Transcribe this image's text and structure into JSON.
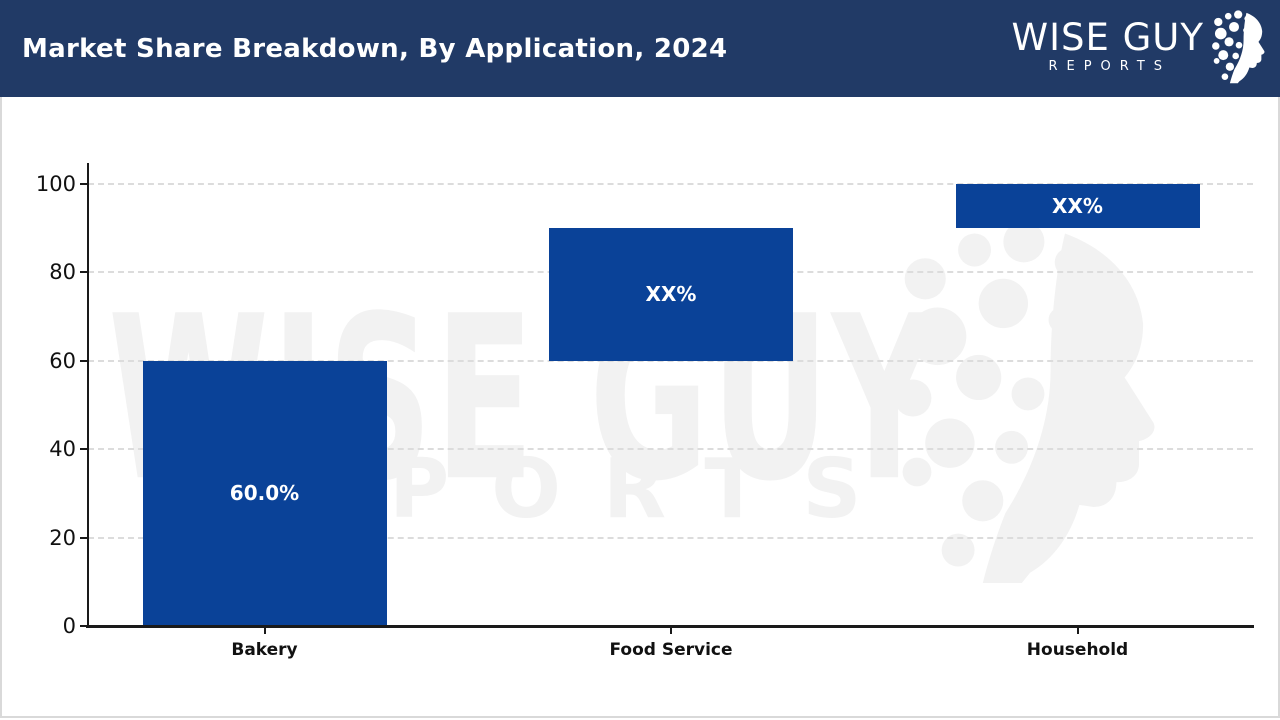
{
  "header": {
    "title": "Market Share Breakdown, By Application, 2024",
    "logo": {
      "line1": "WISE GUY",
      "line2": "REPORTS"
    }
  },
  "watermark": {
    "line1": "WISE GUY",
    "line2": "REPORTS"
  },
  "chart_data": {
    "type": "bar",
    "variant": "waterfall-floating-bars",
    "title": "Market Share Breakdown, By Application, 2024",
    "xlabel": "",
    "ylabel": "",
    "categories": [
      "Bakery",
      "Food Service",
      "Household"
    ],
    "segments": [
      {
        "category": "Bakery",
        "start": 0,
        "end": 60,
        "label": "60.0%"
      },
      {
        "category": "Food Service",
        "start": 60,
        "end": 90,
        "label": "XX%"
      },
      {
        "category": "Household",
        "start": 90,
        "end": 100,
        "label": "XX%"
      }
    ],
    "yticks": [
      0,
      20,
      40,
      60,
      80,
      100
    ],
    "ylim": [
      0,
      105
    ],
    "grid": "horizontal-dashed",
    "legend": "none",
    "bar_color": "#0a4298",
    "bar_label_color": "#ffffff"
  },
  "colors": {
    "header_bg": "#213a66",
    "bar": "#0a4298",
    "grid": "#dcdcdc",
    "axis": "#1a1a1a",
    "watermark": "#f2f2f2",
    "frame_border": "#d9d9d9"
  }
}
